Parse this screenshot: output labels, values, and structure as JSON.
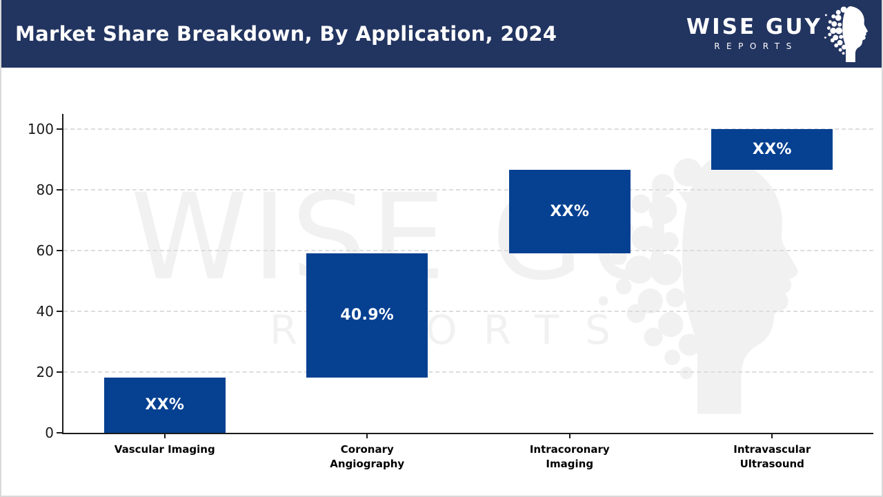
{
  "header": {
    "title": "Market Share Breakdown, By Application, 2024",
    "logo": {
      "line1": "WISE GUY",
      "line2": "REPORTS"
    }
  },
  "watermark": {
    "line1": "WISE GUY",
    "line2": "REPORTS"
  },
  "chart_data": {
    "type": "bar",
    "variant": "floating-segment-waterfall",
    "title": "Market Share Breakdown, By Application, 2024",
    "categories": [
      "Vascular Imaging",
      "Coronary Angiography",
      "Intracoronary Imaging",
      "Intravascular Ultrasound"
    ],
    "bars": [
      {
        "category": "Vascular Imaging",
        "category_lines": [
          "Vascular Imaging"
        ],
        "start": 0,
        "end": 18.2,
        "value_label": "XX%"
      },
      {
        "category": "Coronary Angiography",
        "category_lines": [
          "Coronary",
          "Angiography"
        ],
        "start": 18.2,
        "end": 59.1,
        "value_label": "40.9%"
      },
      {
        "category": "Intracoronary Imaging",
        "category_lines": [
          "Intracoronary",
          "Imaging"
        ],
        "start": 59.1,
        "end": 86.6,
        "value_label": "XX%"
      },
      {
        "category": "Intravascular Ultrasound",
        "category_lines": [
          "Intravascular",
          "Ultrasound"
        ],
        "start": 86.6,
        "end": 100,
        "value_label": "XX%"
      }
    ],
    "yticks": [
      0,
      20,
      40,
      60,
      80,
      100
    ],
    "ylim": [
      0,
      105
    ],
    "xlabel": "",
    "ylabel": "",
    "grid": "horizontal-dashed",
    "legend": "none",
    "bar_color": "#054091",
    "bar_label_color": "#ffffff"
  },
  "colors": {
    "header_bg": "#223460",
    "bar": "#054091",
    "grid": "#dcdcdc",
    "axis": "#1a1a1a",
    "watermark": "#f1f1f2",
    "page_border": "#d9d9d9"
  }
}
